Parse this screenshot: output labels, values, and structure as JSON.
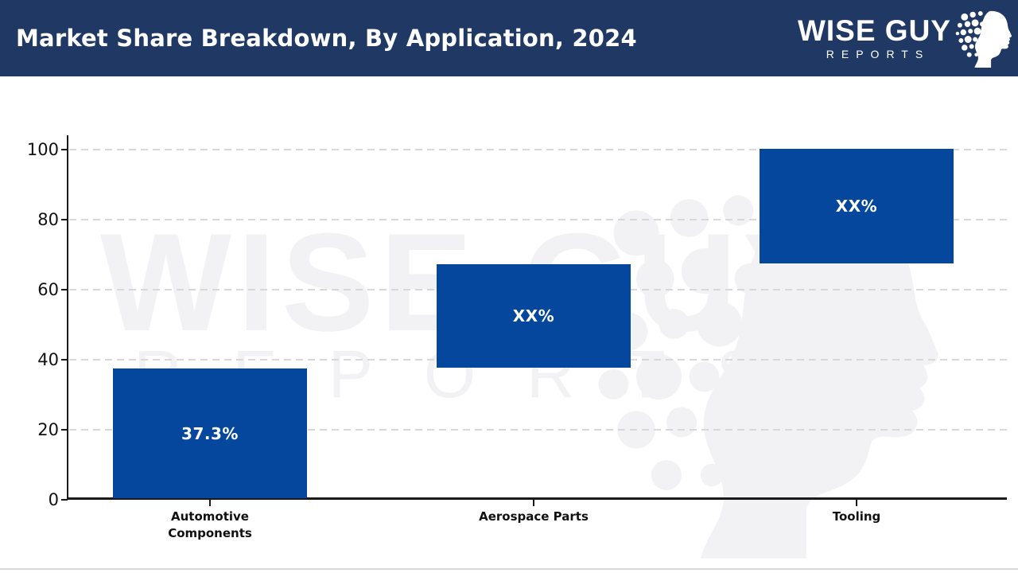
{
  "header": {
    "title": "Market Share Breakdown, By Application, 2024",
    "logo": {
      "line1": "WISE GUY",
      "line2": "REPORTS"
    }
  },
  "watermark": {
    "line1": "WISE GUY",
    "line2": "REPORTS"
  },
  "colors": {
    "header_bg": "#1f3864",
    "bar": "#05479c",
    "grid": "#d8d8d8",
    "axis": "#1a1a1a",
    "bar_label_text": "#ffffff",
    "tick_text": "#111111",
    "watermark": "#f2f2f5"
  },
  "chart_data": {
    "type": "bar",
    "subtype": "waterfall",
    "title": "Market Share Breakdown, By Application, 2024",
    "categories": [
      "Automotive Components",
      "Aerospace Parts",
      "Tooling"
    ],
    "segments": [
      {
        "category": "Automotive Components",
        "start": 0,
        "end": 37.3,
        "label": "37.3%"
      },
      {
        "category": "Aerospace Parts",
        "start": 37.3,
        "end": 67.1,
        "label": "XX%"
      },
      {
        "category": "Tooling",
        "start": 67.1,
        "end": 100,
        "label": "XX%"
      }
    ],
    "yticks": [
      0,
      20,
      40,
      60,
      80,
      100
    ],
    "ylim": [
      0,
      104
    ],
    "xlabel": "",
    "ylabel": "",
    "grid": "horizontal-dashed",
    "legend": "none"
  }
}
